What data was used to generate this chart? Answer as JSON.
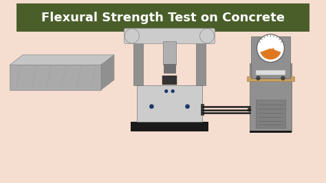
{
  "bg_color": "#f5ddd0",
  "title": "Flexural Strength Test on Concrete",
  "title_bg": "#4a5e2a",
  "title_color": "#ffffff",
  "concrete_color": "#aaaaaa",
  "concrete_texture": "#999999",
  "machine_gray": "#909090",
  "machine_dark": "#2c2c2c",
  "machine_light": "#cccccc",
  "machine_mid": "#b0b0b0",
  "blue_accent": "#1a3a6a",
  "orange_accent": "#e07820",
  "wood_color": "#c8a060"
}
